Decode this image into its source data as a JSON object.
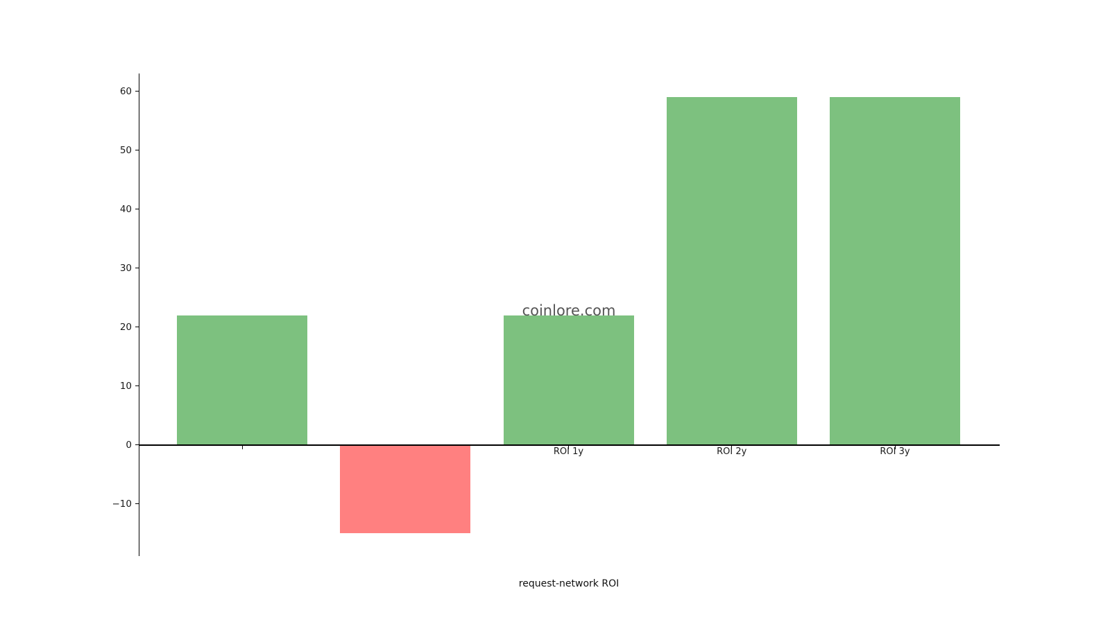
{
  "chart_data": {
    "type": "bar",
    "title": "request-network ROI",
    "xlabel": "request-network ROI",
    "ylabel": "",
    "watermark": "coinlore.com",
    "categories": [
      "",
      "",
      "ROI 1y",
      "ROI 2y",
      "ROI 3y"
    ],
    "values": [
      22,
      -15,
      22,
      59,
      59
    ],
    "series": [
      {
        "name": "ROI",
        "values": [
          22,
          -15,
          22,
          59,
          59
        ]
      }
    ],
    "positive_color": "#7dc17f",
    "negative_color": "#ff8080",
    "axis_color": "#000000",
    "tick_text_color": "#1a1a1a",
    "watermark_color": "#555555",
    "yticks": [
      60,
      50,
      40,
      30,
      20,
      10,
      0,
      -10
    ],
    "ytick_labels": [
      "60",
      "50",
      "40",
      "30",
      "20",
      "10",
      "0",
      "−10"
    ],
    "ylim": [
      -18.8,
      63.1
    ],
    "grid": false,
    "legend_position": "none"
  }
}
